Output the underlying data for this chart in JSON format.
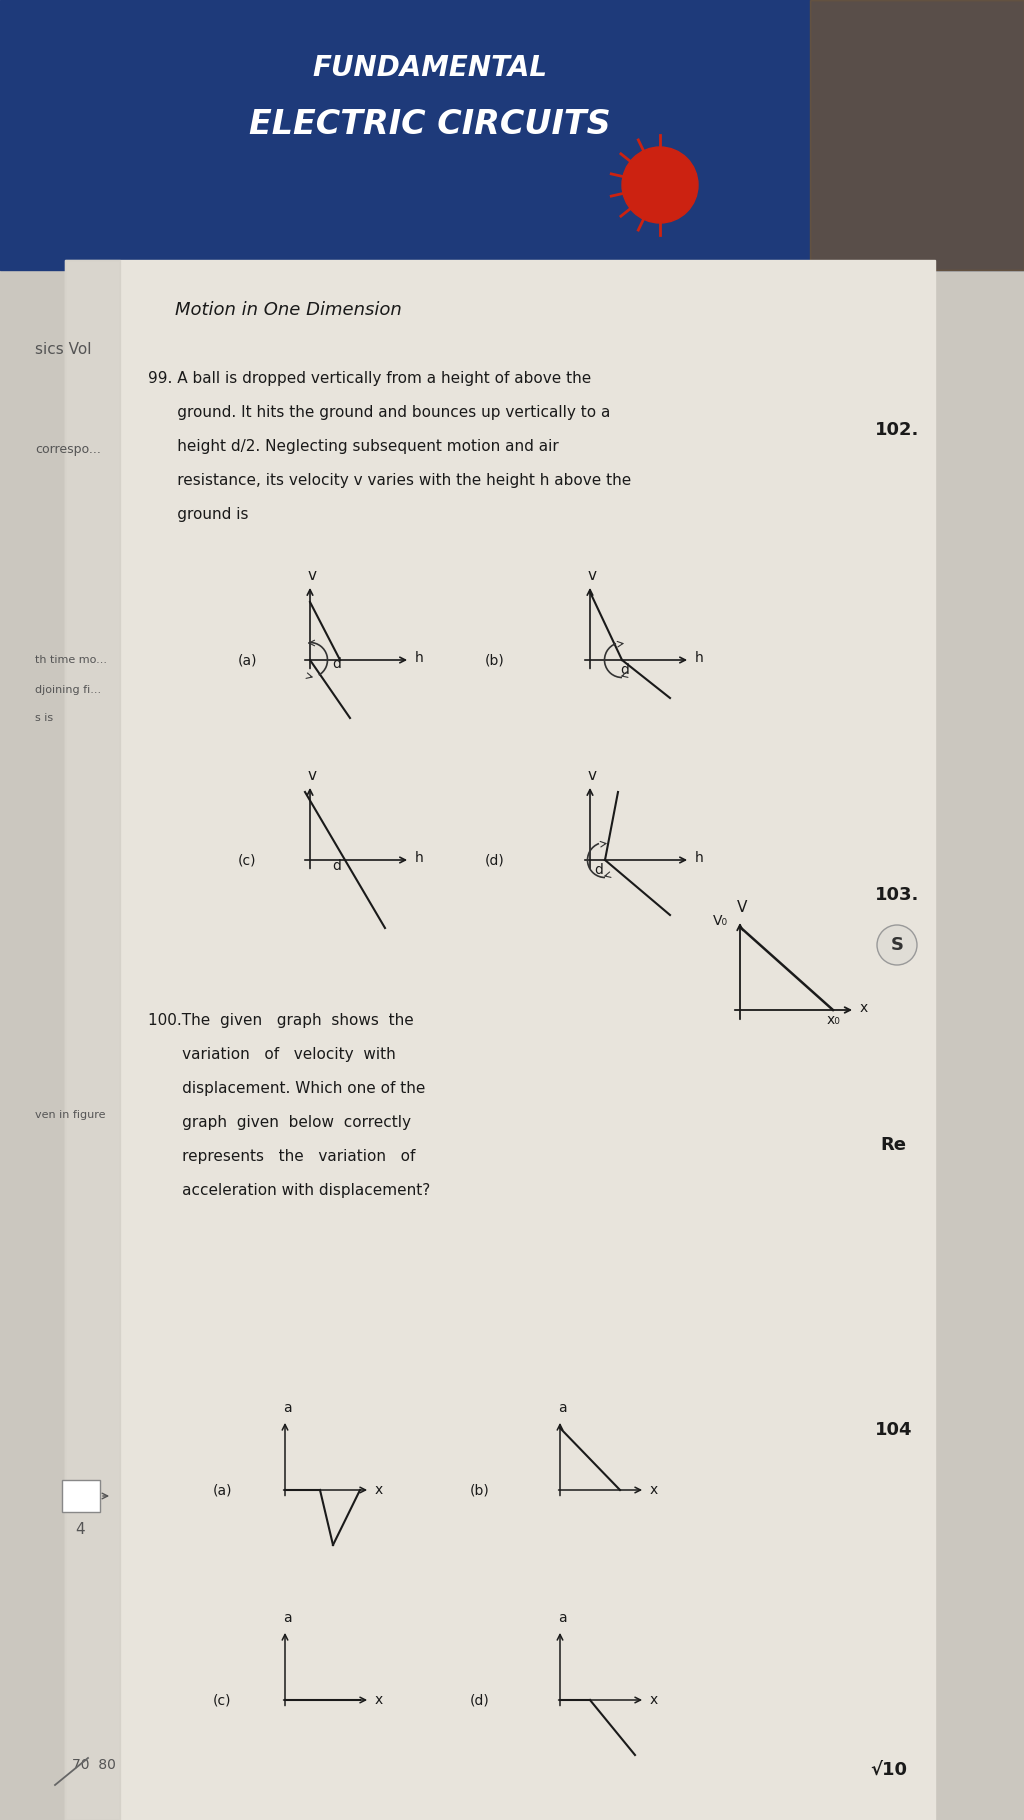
{
  "bg_color": "#cbc7bf",
  "page_bg": "#e8e4dc",
  "text_color": "#1a1a1a",
  "line_color": "#1a1a1a",
  "cover_color": "#1e3a7a",
  "cover_right_color": "#7a5a30",
  "emblem_color": "#cc2211",
  "margin_color": "#b8b4aa",
  "q99_lines": [
    "99. A ball is dropped vertically from a height of above the",
    "      ground. It hits the ground and bounces up vertically to a",
    "      height d/2. Neglecting subsequent motion and air",
    "      resistance, its velocity v varies with the height h above the",
    "      ground is"
  ],
  "q100_lines": [
    "100.The  given   graph  shows  the",
    "       variation   of   velocity  with",
    "       displacement. Which one of the",
    "       graph  given  below  correctly",
    "       represents   the   variation   of",
    "       acceleration with displacement?"
  ],
  "left_texts": [
    [
      "sics Vol",
      35,
      350,
      11
    ],
    [
      "correspo...",
      35,
      450,
      9
    ],
    [
      "th time mo...",
      35,
      660,
      8
    ],
    [
      "djoining fi...",
      35,
      690,
      8
    ],
    [
      "s is",
      35,
      718,
      8
    ],
    [
      "ven in figure",
      35,
      1115,
      8
    ],
    [
      "4",
      75,
      1530,
      11
    ],
    [
      "70  80",
      72,
      1765,
      10
    ]
  ],
  "num_102": "102.",
  "num_103": "103.",
  "num_104": "104",
  "num_Re": "Re",
  "section_title": "Motion in One Dimension"
}
